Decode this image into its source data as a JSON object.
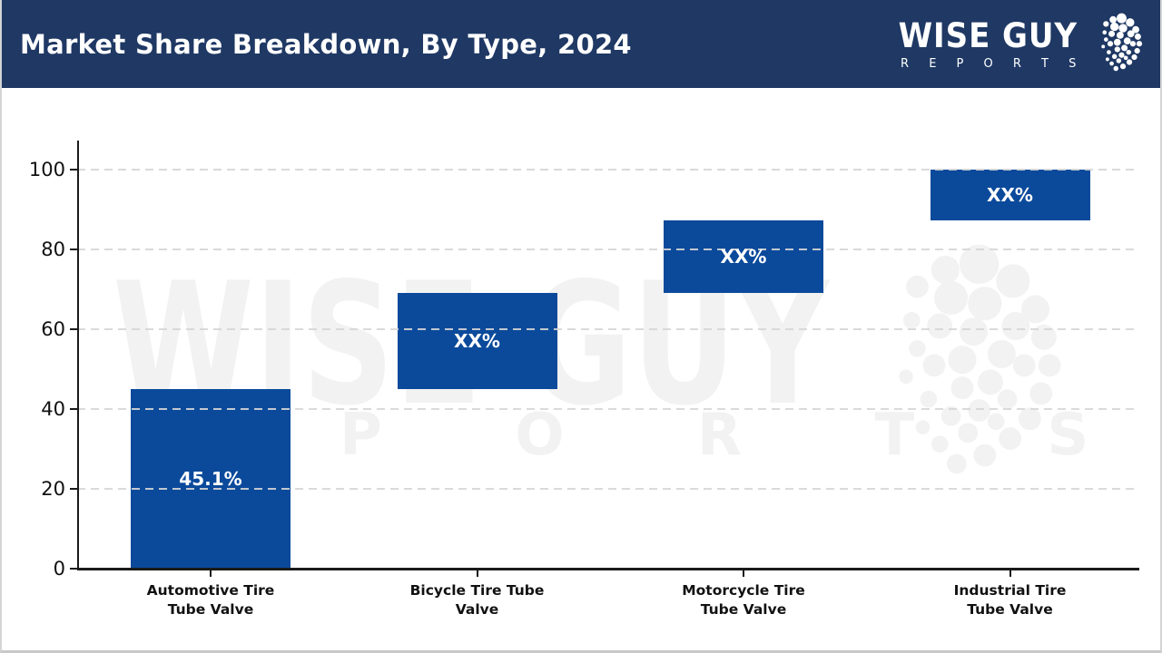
{
  "header": {
    "title": "Market Share Breakdown, By Type, 2024",
    "logo": {
      "line1": "WISE GUY",
      "line2": "R E P O R T S"
    }
  },
  "watermark": {
    "line1": "WISE GUY",
    "line2": "P O R T S"
  },
  "chart_data": {
    "type": "bar",
    "subtype": "waterfall",
    "title": "Market Share Breakdown, By Type, 2024",
    "unit": "%",
    "categories": [
      [
        "Automotive Tire",
        "Tube Valve"
      ],
      [
        "Bicycle Tire Tube",
        "Valve"
      ],
      [
        "Motorcycle Tire",
        "Tube Valve"
      ],
      [
        "Industrial Tire",
        "Tube Valve"
      ]
    ],
    "segments": [
      {
        "category": "Automotive Tire Tube Valve",
        "start": 0,
        "end": 45.1,
        "value_label": "45.1%"
      },
      {
        "category": "Bicycle Tire Tube Valve",
        "start": 45.1,
        "end": 69.0,
        "value_label": "XX%"
      },
      {
        "category": "Motorcycle Tire Tube Valve",
        "start": 69.0,
        "end": 87.2,
        "value_label": "XX%"
      },
      {
        "category": "Industrial Tire Tube Valve",
        "start": 87.2,
        "end": 100,
        "value_label": "XX%"
      }
    ],
    "yticks": [
      0,
      20,
      40,
      60,
      80,
      100
    ],
    "ylim": [
      0,
      107
    ],
    "xlabel": "",
    "ylabel": "",
    "grid": "horizontal-dashed",
    "legend": "none"
  },
  "colors": {
    "header_bg": "#1f3864",
    "bar": "#0b4a9b",
    "bar_label": "#ffffff",
    "gridline": "#d6d6d6",
    "axis": "#1a1a1a",
    "tick_text": "#111111",
    "watermark": "#f2f2f2"
  }
}
